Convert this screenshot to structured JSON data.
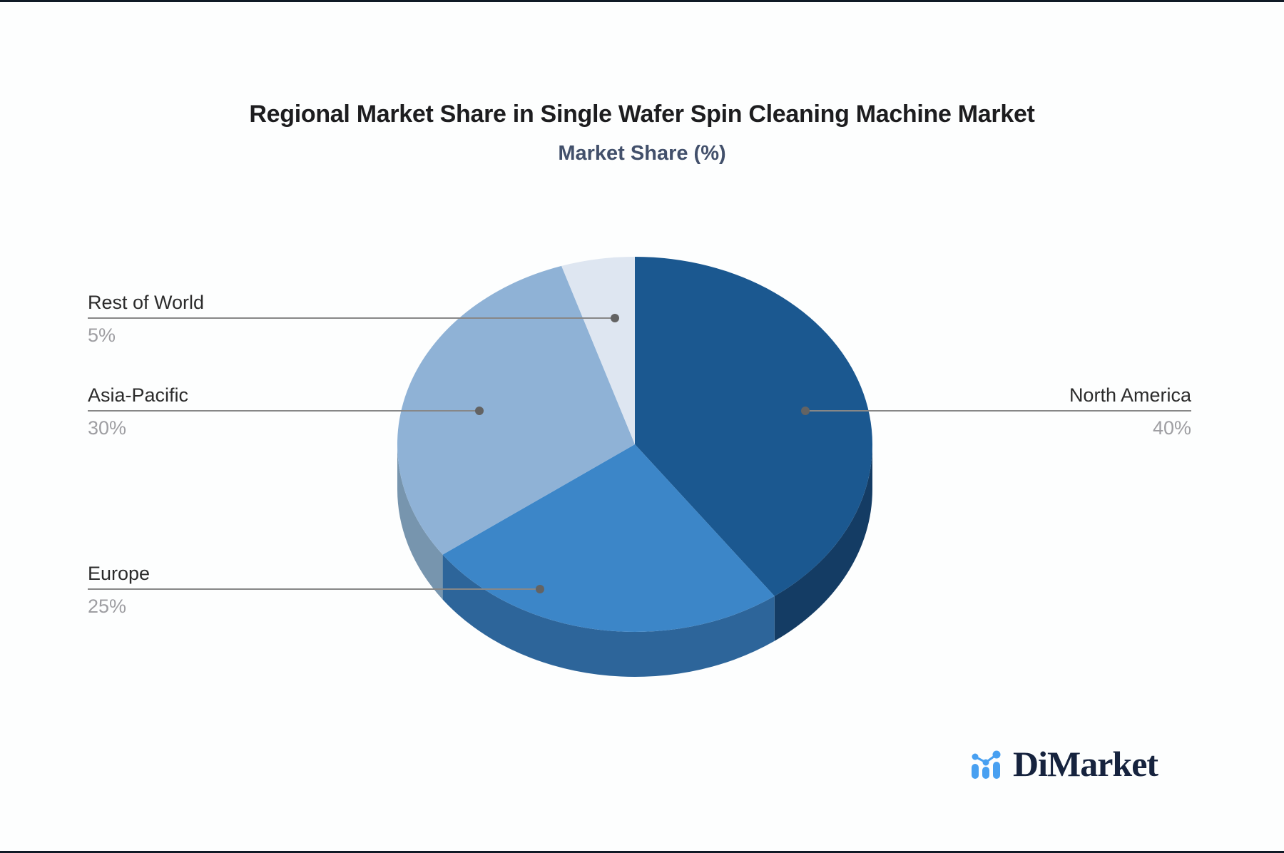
{
  "page": {
    "background": "#fdfefe",
    "edge_line_color": "#101a26"
  },
  "chart_data": {
    "type": "pie",
    "title": "Regional Market Share in Single Wafer Spin Cleaning Machine Market",
    "subtitle": "Market Share (%)",
    "unit": "%",
    "style": "3d-pie",
    "direction": "clockwise",
    "start_angle": "12-o-clock",
    "labels_position": "outside with horizontal leader lines and end dots",
    "legend": "none",
    "slices": [
      {
        "label": "North America",
        "value": 40,
        "display": "40%",
        "color": "#1b5890",
        "side_color": "#143c64",
        "label_side": "right"
      },
      {
        "label": "Europe",
        "value": 25,
        "display": "25%",
        "color": "#3c86c8",
        "side_color": "#2d659a",
        "label_side": "left"
      },
      {
        "label": "Asia-Pacific",
        "value": 30,
        "display": "30%",
        "color": "#8fb2d6",
        "side_color": "#7795ae",
        "label_side": "left"
      },
      {
        "label": "Rest of World",
        "value": 5,
        "display": "5%",
        "color": "#dee6f1",
        "side_color": "#b9c6d8",
        "label_side": "left"
      }
    ],
    "leader_line_color": "#878787",
    "leader_dot_color": "#636363",
    "label_name_color": "#2b2b2b",
    "label_value_color": "#9e9ea2"
  },
  "brand": {
    "name": "DiMarket",
    "icon": "bar-line-chart-icon",
    "icon_color": "#48a0f1",
    "text_color": "#16233e"
  }
}
